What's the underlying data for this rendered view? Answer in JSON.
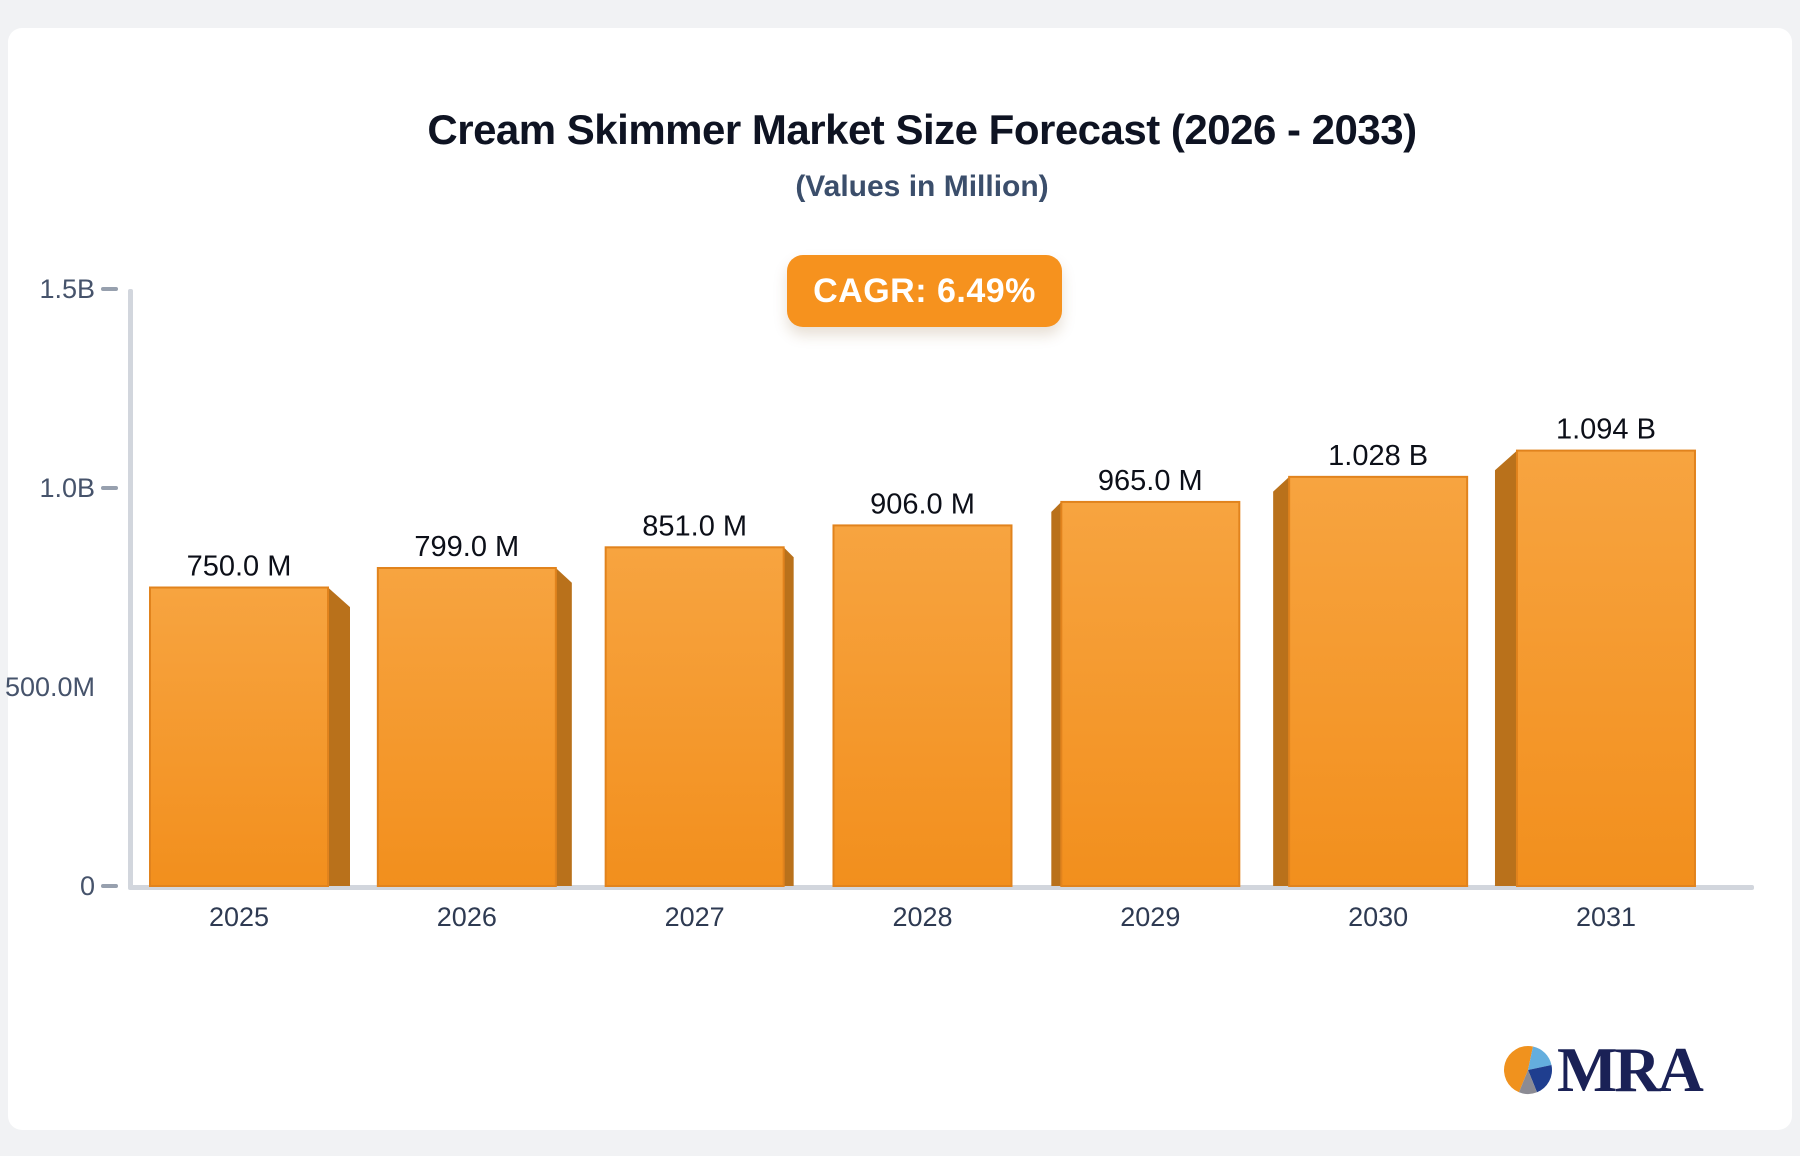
{
  "page": {
    "background": "#f1f2f4",
    "card_background": "#ffffff"
  },
  "header": {
    "title": "Cream Skimmer Market Size Forecast (2026 - 2033)",
    "subtitle": "(Values in Million)"
  },
  "badge": {
    "label": "CAGR: 6.49%",
    "background": "#f6921e",
    "text_color": "#ffffff"
  },
  "chart_data": {
    "type": "bar",
    "title": "Cream Skimmer Market Size Forecast (2026 - 2033)",
    "subtitle": "(Values in Million)",
    "unit": "millions",
    "categories": [
      "2025",
      "2026",
      "2027",
      "2028",
      "2029",
      "2030",
      "2031"
    ],
    "values": [
      750,
      799,
      851,
      906,
      965,
      1028,
      1094
    ],
    "bar_labels": [
      "750.0 M",
      "799.0 M",
      "851.0 M",
      "906.0 M",
      "965.0 M",
      "1.028 B",
      "1.094 B"
    ],
    "cagr": "6.49%",
    "ylim": [
      0,
      1500
    ],
    "yticks": [
      {
        "label": "1.5B",
        "value": 1500,
        "dash": true
      },
      {
        "label": "1.0B",
        "value": 1000,
        "dash": true
      },
      {
        "label": "500.0M",
        "value": 500,
        "dash": false
      },
      {
        "label": "0",
        "value": 0,
        "dash": true
      }
    ],
    "xlabel": "",
    "ylabel": "",
    "grid": false,
    "legend": false,
    "colors": {
      "bar_top": "#f7a440",
      "bar_bottom": "#f28f1d",
      "bar_side": "#b9711b",
      "bar_stroke": "#e1831d",
      "axis_line": "#d2d6dd",
      "tick_dash": "#97a0ae",
      "tick_text": "#46536b",
      "category_text": "#2e3a52",
      "value_text": "#0c0f18"
    }
  },
  "logo": {
    "text": "MRA",
    "text_color": "#1a2156",
    "pie": {
      "slices": [
        {
          "name": "orange-slice",
          "color": "#f0921e",
          "start": 202,
          "end": 372
        },
        {
          "name": "light-blue-slice",
          "color": "#64aede",
          "start": 12,
          "end": 78
        },
        {
          "name": "dark-blue-slice",
          "color": "#1f3e8f",
          "start": 78,
          "end": 158
        },
        {
          "name": "gray-slice",
          "color": "#8b8b94",
          "start": 158,
          "end": 202
        }
      ]
    }
  }
}
